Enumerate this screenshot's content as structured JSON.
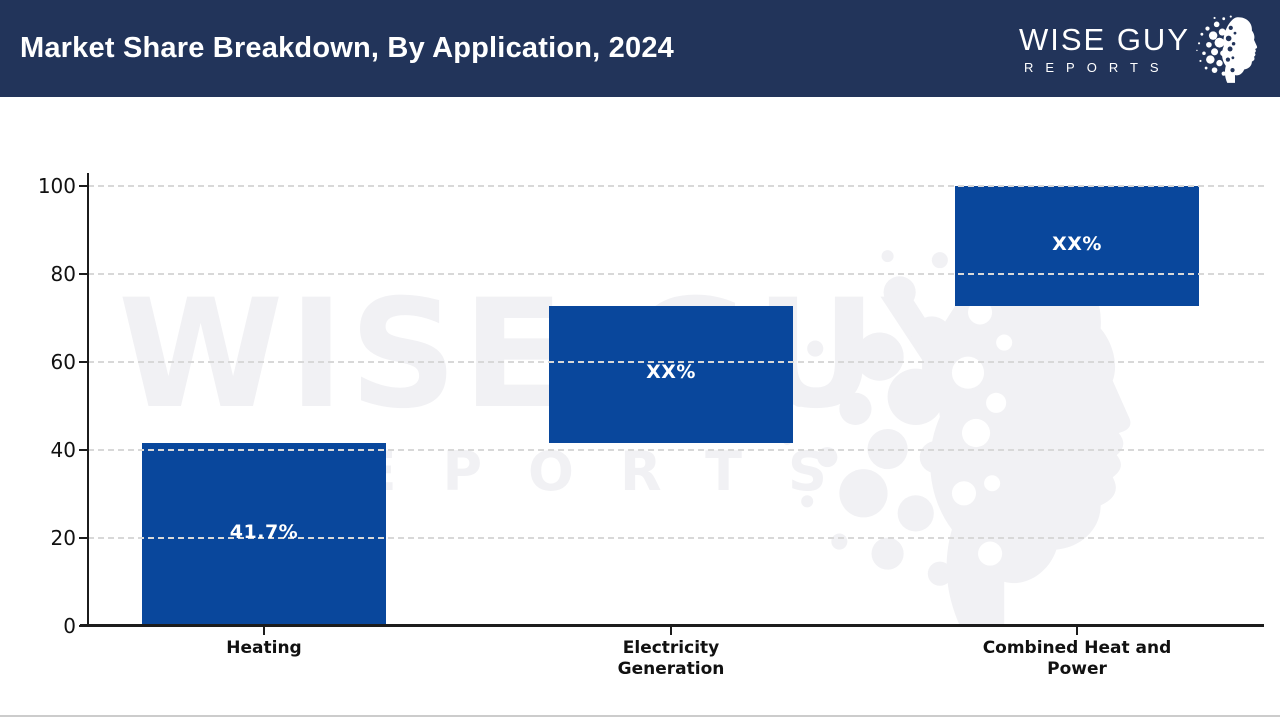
{
  "header": {
    "title": "Market Share Breakdown, By Application, 2024",
    "logo": {
      "name": "WISE GUY",
      "sub": "REPORTS"
    }
  },
  "watermark": {
    "name": "WISE GUY",
    "sub": "REPORTS"
  },
  "chart_data": {
    "type": "bar",
    "variant": "floating-waterfall",
    "title": "Market Share Breakdown, By Application, 2024",
    "xlabel": "",
    "ylabel": "",
    "ylim": [
      0,
      100
    ],
    "yticks": [
      0,
      20,
      40,
      60,
      80,
      100
    ],
    "grid": "horizontal-dashed",
    "legend": "none",
    "categories": [
      "Heating",
      "Electricity Generation",
      "Combined Heat and Power"
    ],
    "bars": [
      {
        "category_lines": [
          "Heating"
        ],
        "start": 0,
        "end": 41.7,
        "value": 41.7,
        "label": "41.7%"
      },
      {
        "category_lines": [
          "Electricity",
          "Generation"
        ],
        "start": 41.7,
        "end": 72.7,
        "value": 31.0,
        "label": "XX%"
      },
      {
        "category_lines": [
          "Combined Heat and",
          "Power"
        ],
        "start": 72.7,
        "end": 100,
        "value": 27.3,
        "label": "XX%"
      }
    ]
  },
  "colors": {
    "header_bg": "#22345a",
    "bar": "#09479c",
    "bar_label": "#ffffff",
    "gridline": "#d8d8d8",
    "axis": "#1c1c1c",
    "watermark": "#f1f1f4",
    "bottom_line": "#cccccc"
  }
}
